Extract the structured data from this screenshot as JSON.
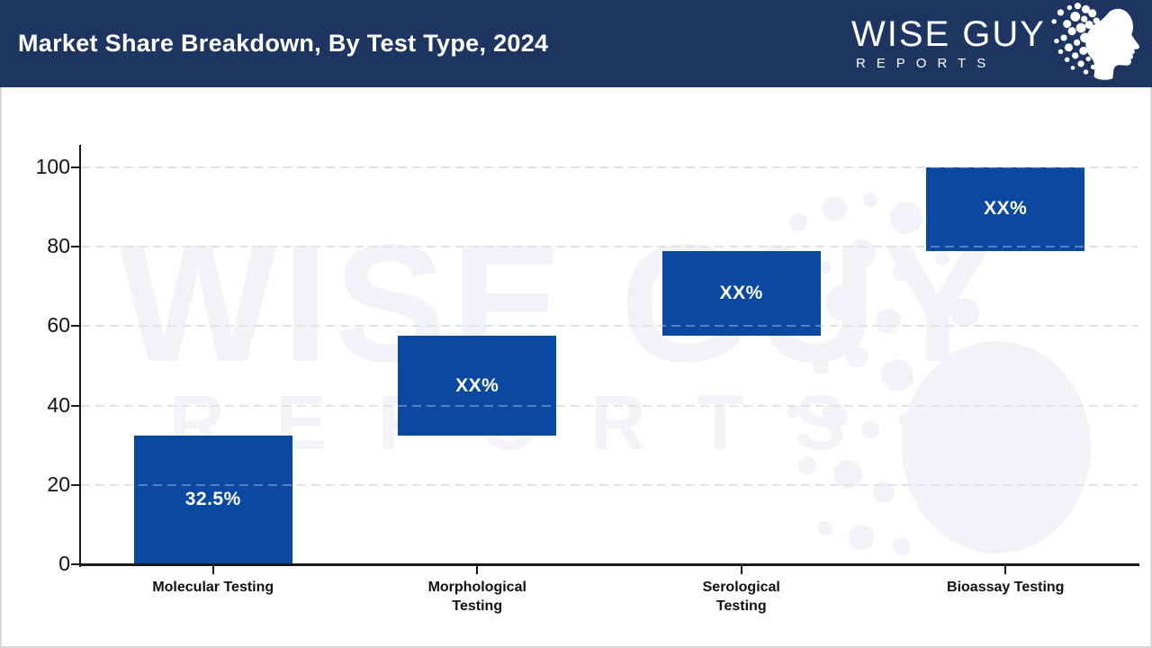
{
  "header": {
    "title": "Market Share Breakdown, By Test Type, 2024",
    "logo": {
      "line1": "WISE GUY",
      "line2": "REPORTS"
    }
  },
  "watermark": {
    "line1": "WISE GUY",
    "line2": "REPORTS"
  },
  "colors": {
    "header_bg": "#1e3562",
    "bar": "#0b48a0",
    "bar_label": "#ffffff",
    "grid": "#d9d9d9",
    "axis": "#1a1a1a",
    "watermark": "#f2f3f6",
    "frame_border": "#d9d9d9"
  },
  "chart_data": {
    "type": "bar",
    "subtype": "waterfall",
    "title": "Market Share Breakdown, By Test Type, 2024",
    "categories": [
      "Molecular Testing",
      "Morphological\nTesting",
      "Serological\nTesting",
      "Bioassay Testing"
    ],
    "segments": [
      {
        "category": "Molecular Testing",
        "label": "32.5%",
        "start": 0,
        "end": 32.5
      },
      {
        "category": "Morphological Testing",
        "label": "XX%",
        "start": 32.5,
        "end": 57.5
      },
      {
        "category": "Serological Testing",
        "label": "XX%",
        "start": 57.5,
        "end": 79
      },
      {
        "category": "Bioassay Testing",
        "label": "XX%",
        "start": 79,
        "end": 100
      }
    ],
    "xlabel": "",
    "ylabel": "",
    "ylim": [
      0,
      100
    ],
    "yticks": [
      0,
      20,
      40,
      60,
      80,
      100
    ],
    "grid": true,
    "legend": false
  }
}
